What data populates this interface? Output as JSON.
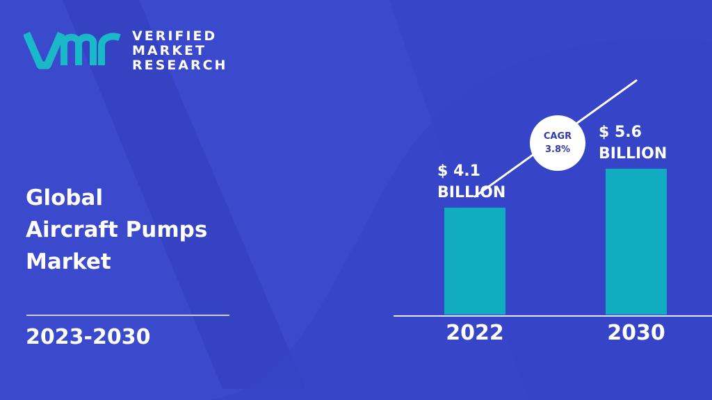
{
  "brand": {
    "line1": "VERIFIED",
    "line2": "MARKET",
    "line3": "RESEARCH"
  },
  "report": {
    "title_line1": "Global",
    "title_line2": "Aircraft Pumps",
    "title_line3": "Market",
    "period": "2023-2030"
  },
  "colors": {
    "background": "#3b49cc",
    "bar": "#12acc1",
    "logo": "#19b9c9",
    "text": "#ffffff"
  },
  "chart_data": {
    "type": "bar",
    "categories": [
      "2022",
      "2030"
    ],
    "values": [
      4.1,
      5.6
    ],
    "value_labels": [
      [
        "$ 4.1",
        "BILLION"
      ],
      [
        "$ 5.6",
        "BILLION"
      ]
    ],
    "cagr_label": "CAGR",
    "cagr_value": "3.8%",
    "grid": false
  }
}
